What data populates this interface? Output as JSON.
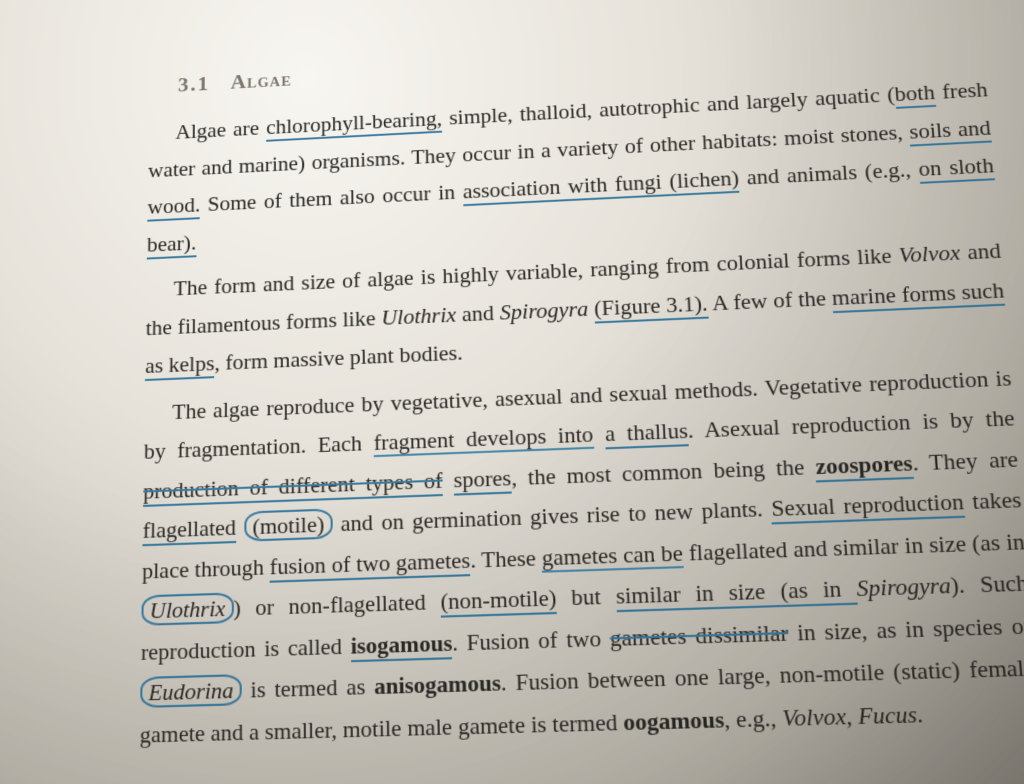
{
  "colors": {
    "text": "#2a2824",
    "faded": "#7b766c",
    "underline": "#3b7a9e",
    "bg_light": "#f8f6f1",
    "bg_dark": "#6f6b62"
  },
  "typography": {
    "body_fontsize_pt": 16,
    "heading_fontsize_pt": 16,
    "line_height": 1.75,
    "family": "serif"
  },
  "section": {
    "number": "3.1",
    "title": "Algae"
  },
  "p1": {
    "s1a": "Algae are ",
    "s1b": "chlorophyll-bearing,",
    "s1c": " simple, thalloid, autotrophic and largely aquatic (",
    "s1d": "both",
    "s1e": " fresh water and marine) organisms. They occur in a variety of other habitats: moist stones, ",
    "s1f": "soils and wood.",
    "s1g": " Some of them also occur in ",
    "s1h": "association with fungi (lichen)",
    "s1i": " and animals (e.g., ",
    "s1j": "on sloth bear).",
    "s1k": ""
  },
  "p2": {
    "s1": "The form and size of algae is highly variable, ranging from colonial forms like ",
    "volvox": "Volvox",
    "s2": " and the filamentous forms like ",
    "ulothrix": "Ulothrix",
    "s3": " and ",
    "spirogyra": "Spirogyra",
    "s4": " ",
    "fig": "(Figure 3.1).",
    "s5": " A few of the ",
    "marine": "marine forms such as kelps",
    "s6": ", form massive plant bodies."
  },
  "p3": {
    "s1": "The algae reproduce by vegetative, asexual and sexual methods. Vegetative reproduction is by fragmentation. Each ",
    "frag": "fragment develops into",
    "s2": " ",
    "thallus": "a thallus",
    "s3": ". Asexual reproduction is by the ",
    "prod": "production of different types of",
    "s4": " ",
    "spores": "spores",
    "s5": ", the most common being the ",
    "zoo": "zoospores",
    "s6": ". They are ",
    "flag": "flagellated",
    "s7": " ",
    "motile": "(motile)",
    "s8": " and on germination gives rise to new plants. ",
    "sex": "Sexual reproduction",
    "s9": " takes place through ",
    "fusion": "fusion of two gametes",
    "s10": ". These ",
    "gam": "gametes can be",
    "s11": " flagellated and similar in size (as in ",
    "ulo2": "Ulothrix",
    "s12": ") or non-flagellated ",
    "nonm": "(non-motile)",
    "s13": " but ",
    "sim": "similar in size (as in ",
    "spi2": "Spirogyra",
    "s14": "). Such reproduction is called ",
    "iso": "isogamous",
    "s15": ". Fusion of two ",
    "gamd": "gametes dissimilar",
    "s16": " in size, as in species of ",
    "eud": "Eudorina",
    "s17": " is termed as ",
    "aniso": "anisogamous",
    "s18": ". Fusion between one large, non-motile (static) female gamete and a smaller, motile male gamete is termed ",
    "oog": "oogamous",
    "s19": ", e.g., ",
    "vol2": "Volvox",
    "s20": ", ",
    "fuc": "Fucus",
    "s21": "."
  }
}
